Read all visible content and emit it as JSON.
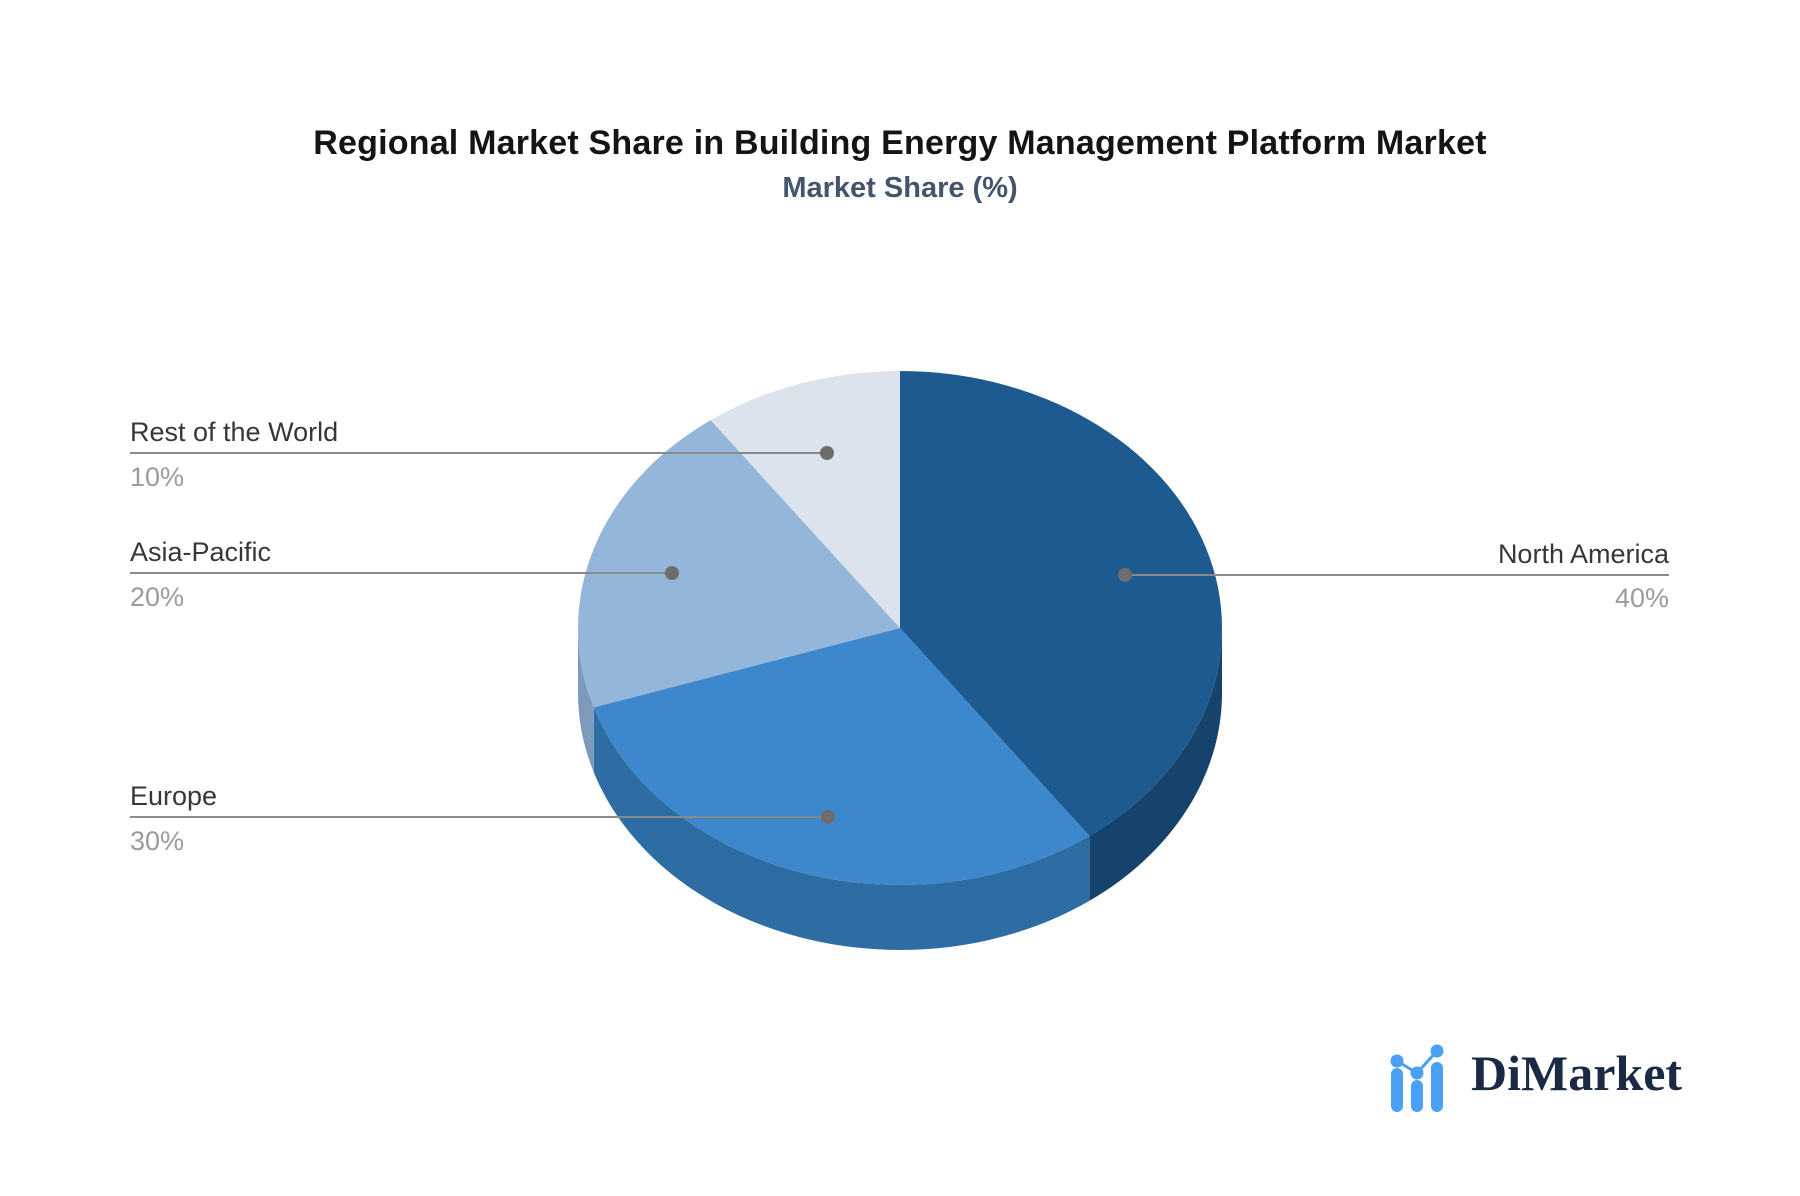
{
  "chart_data": {
    "type": "pie",
    "title": "Regional Market Share in Building Energy Management Platform Market",
    "subtitle": "Market Share (%)",
    "unit": "%",
    "style": "3d-pie",
    "start_angle_deg": 0,
    "direction": "clockwise",
    "legend_position": "none",
    "background": "#ffffff",
    "slices": [
      {
        "label": "North America",
        "value": 40,
        "pct_label": "40%",
        "color": "#1c5a8f",
        "side_color": "#16436c",
        "label_side": "right"
      },
      {
        "label": "Europe",
        "value": 30,
        "pct_label": "30%",
        "color": "#3d88cc",
        "side_color": "#2e6da3",
        "label_side": "left"
      },
      {
        "label": "Asia-Pacific",
        "value": 20,
        "pct_label": "20%",
        "color": "#94b6da",
        "side_color": "#7d99bb",
        "label_side": "left"
      },
      {
        "label": "Rest of the World",
        "value": 10,
        "pct_label": "10%",
        "color": "#dde3ed",
        "side_color": "#c6cdd9",
        "label_side": "left"
      }
    ],
    "callout_style": {
      "line_color": "#8a8a8a",
      "dot_color": "#6d6d6d",
      "label_color": "#373737",
      "pct_color": "#9b9b9b"
    }
  },
  "branding": {
    "logo_text": "DiMarket",
    "logo_icon": "bar-line-chart-icon",
    "accent_color": "#4aa0f2",
    "text_color": "#1b2a44"
  }
}
